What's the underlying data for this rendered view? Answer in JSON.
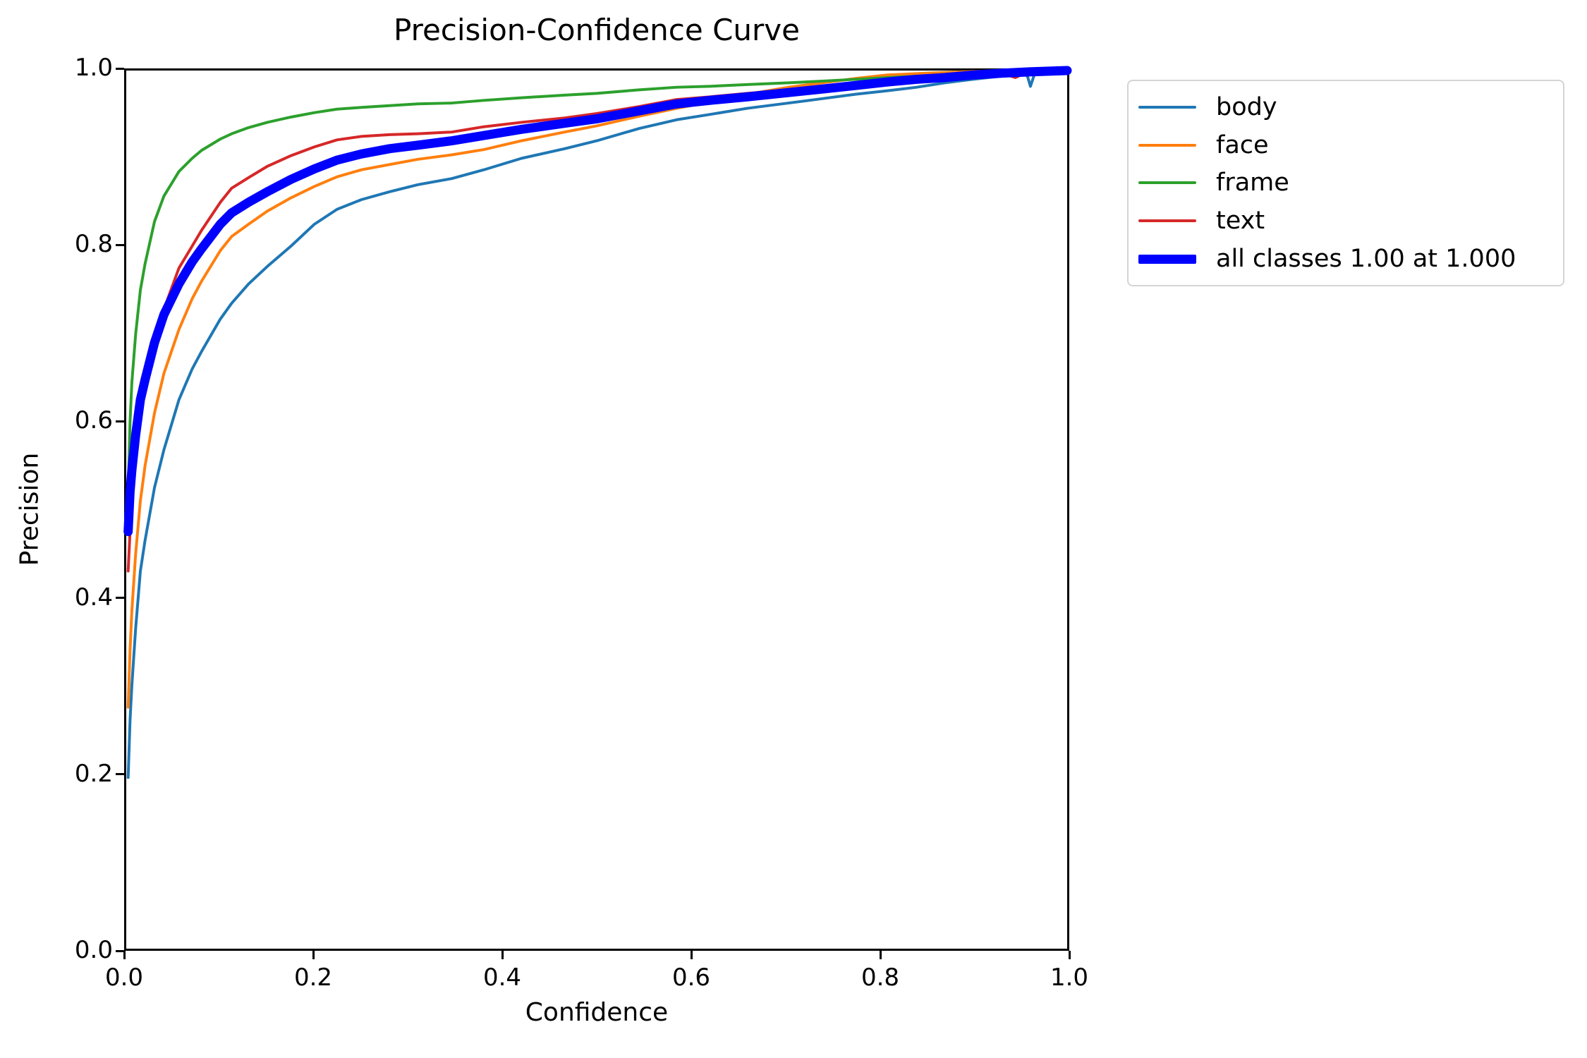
{
  "chart_data": {
    "type": "line",
    "title": "Precision-Confidence Curve",
    "xlabel": "Confidence",
    "ylabel": "Precision",
    "xlim": [
      0.0,
      1.0
    ],
    "ylim": [
      0.0,
      1.0
    ],
    "grid": false,
    "legend_position": "outside-upper-right",
    "x_ticks": [
      {
        "v": 0.0,
        "label": "0.0"
      },
      {
        "v": 0.2,
        "label": "0.2"
      },
      {
        "v": 0.4,
        "label": "0.4"
      },
      {
        "v": 0.6,
        "label": "0.6"
      },
      {
        "v": 0.8,
        "label": "0.8"
      },
      {
        "v": 1.0,
        "label": "1.0"
      }
    ],
    "y_ticks": [
      {
        "v": 0.0,
        "label": "0.0"
      },
      {
        "v": 0.2,
        "label": "0.2"
      },
      {
        "v": 0.4,
        "label": "0.4"
      },
      {
        "v": 0.6,
        "label": "0.6"
      },
      {
        "v": 0.8,
        "label": "0.8"
      },
      {
        "v": 1.0,
        "label": "1.0"
      }
    ],
    "series": [
      {
        "name": "body",
        "color": "#1f77b4",
        "line_width": 4,
        "points": [
          [
            0.002,
            0.195
          ],
          [
            0.004,
            0.26
          ],
          [
            0.006,
            0.3
          ],
          [
            0.01,
            0.365
          ],
          [
            0.015,
            0.43
          ],
          [
            0.02,
            0.465
          ],
          [
            0.03,
            0.525
          ],
          [
            0.04,
            0.568
          ],
          [
            0.056,
            0.625
          ],
          [
            0.07,
            0.66
          ],
          [
            0.08,
            0.68
          ],
          [
            0.1,
            0.717
          ],
          [
            0.112,
            0.735
          ],
          [
            0.13,
            0.757
          ],
          [
            0.15,
            0.777
          ],
          [
            0.175,
            0.8
          ],
          [
            0.2,
            0.825
          ],
          [
            0.224,
            0.842
          ],
          [
            0.25,
            0.853
          ],
          [
            0.28,
            0.862
          ],
          [
            0.31,
            0.87
          ],
          [
            0.346,
            0.877
          ],
          [
            0.38,
            0.887
          ],
          [
            0.42,
            0.9
          ],
          [
            0.466,
            0.911
          ],
          [
            0.5,
            0.92
          ],
          [
            0.545,
            0.934
          ],
          [
            0.585,
            0.944
          ],
          [
            0.62,
            0.95
          ],
          [
            0.66,
            0.957
          ],
          [
            0.704,
            0.963
          ],
          [
            0.74,
            0.968
          ],
          [
            0.775,
            0.973
          ],
          [
            0.809,
            0.977
          ],
          [
            0.84,
            0.981
          ],
          [
            0.87,
            0.986
          ],
          [
            0.9,
            0.99
          ],
          [
            0.925,
            0.993
          ],
          [
            0.945,
            0.995
          ],
          [
            0.955,
            0.996
          ],
          [
            0.958,
            0.993
          ],
          [
            0.961,
            0.982
          ],
          [
            0.965,
            0.995
          ],
          [
            0.97,
            0.998
          ],
          [
            0.98,
            0.999
          ],
          [
            1.0,
            1.0
          ]
        ]
      },
      {
        "name": "face",
        "color": "#ff7f0e",
        "line_width": 4,
        "points": [
          [
            0.002,
            0.275
          ],
          [
            0.004,
            0.34
          ],
          [
            0.006,
            0.385
          ],
          [
            0.01,
            0.45
          ],
          [
            0.015,
            0.51
          ],
          [
            0.02,
            0.55
          ],
          [
            0.03,
            0.61
          ],
          [
            0.04,
            0.655
          ],
          [
            0.056,
            0.705
          ],
          [
            0.07,
            0.74
          ],
          [
            0.08,
            0.76
          ],
          [
            0.1,
            0.795
          ],
          [
            0.112,
            0.811
          ],
          [
            0.13,
            0.825
          ],
          [
            0.15,
            0.84
          ],
          [
            0.175,
            0.855
          ],
          [
            0.2,
            0.868
          ],
          [
            0.224,
            0.879
          ],
          [
            0.25,
            0.887
          ],
          [
            0.28,
            0.893
          ],
          [
            0.31,
            0.899
          ],
          [
            0.346,
            0.904
          ],
          [
            0.38,
            0.91
          ],
          [
            0.42,
            0.92
          ],
          [
            0.466,
            0.93
          ],
          [
            0.5,
            0.937
          ],
          [
            0.545,
            0.948
          ],
          [
            0.585,
            0.957
          ],
          [
            0.62,
            0.964
          ],
          [
            0.66,
            0.973
          ],
          [
            0.704,
            0.981
          ],
          [
            0.74,
            0.986
          ],
          [
            0.775,
            0.991
          ],
          [
            0.809,
            0.995
          ],
          [
            0.85,
            0.997
          ],
          [
            0.9,
            0.999
          ],
          [
            0.95,
            0.9995
          ],
          [
            1.0,
            1.0
          ]
        ]
      },
      {
        "name": "frame",
        "color": "#2ca02c",
        "line_width": 4,
        "points": [
          [
            0.002,
            0.52
          ],
          [
            0.004,
            0.6
          ],
          [
            0.006,
            0.645
          ],
          [
            0.01,
            0.7
          ],
          [
            0.015,
            0.75
          ],
          [
            0.02,
            0.78
          ],
          [
            0.03,
            0.828
          ],
          [
            0.04,
            0.857
          ],
          [
            0.056,
            0.885
          ],
          [
            0.07,
            0.9
          ],
          [
            0.08,
            0.909
          ],
          [
            0.1,
            0.922
          ],
          [
            0.112,
            0.928
          ],
          [
            0.13,
            0.935
          ],
          [
            0.15,
            0.941
          ],
          [
            0.175,
            0.947
          ],
          [
            0.2,
            0.952
          ],
          [
            0.224,
            0.956
          ],
          [
            0.25,
            0.958
          ],
          [
            0.28,
            0.96
          ],
          [
            0.31,
            0.962
          ],
          [
            0.346,
            0.963
          ],
          [
            0.38,
            0.966
          ],
          [
            0.42,
            0.969
          ],
          [
            0.466,
            0.972
          ],
          [
            0.5,
            0.974
          ],
          [
            0.545,
            0.978
          ],
          [
            0.585,
            0.981
          ],
          [
            0.62,
            0.982
          ],
          [
            0.66,
            0.984
          ],
          [
            0.704,
            0.986
          ],
          [
            0.74,
            0.988
          ],
          [
            0.775,
            0.99
          ],
          [
            0.809,
            0.992
          ],
          [
            0.85,
            0.994
          ],
          [
            0.9,
            0.9965
          ],
          [
            0.95,
            0.9985
          ],
          [
            1.0,
            1.0
          ]
        ]
      },
      {
        "name": "text",
        "color": "#d62728",
        "line_width": 4,
        "points": [
          [
            0.002,
            0.43
          ],
          [
            0.004,
            0.475
          ],
          [
            0.006,
            0.505
          ],
          [
            0.01,
            0.555
          ],
          [
            0.015,
            0.605
          ],
          [
            0.02,
            0.638
          ],
          [
            0.03,
            0.69
          ],
          [
            0.04,
            0.728
          ],
          [
            0.056,
            0.775
          ],
          [
            0.07,
            0.8
          ],
          [
            0.08,
            0.818
          ],
          [
            0.1,
            0.85
          ],
          [
            0.112,
            0.866
          ],
          [
            0.13,
            0.878
          ],
          [
            0.15,
            0.891
          ],
          [
            0.175,
            0.903
          ],
          [
            0.2,
            0.913
          ],
          [
            0.224,
            0.921
          ],
          [
            0.25,
            0.925
          ],
          [
            0.28,
            0.927
          ],
          [
            0.31,
            0.928
          ],
          [
            0.346,
            0.93
          ],
          [
            0.38,
            0.936
          ],
          [
            0.42,
            0.941
          ],
          [
            0.466,
            0.946
          ],
          [
            0.5,
            0.951
          ],
          [
            0.545,
            0.959
          ],
          [
            0.585,
            0.967
          ],
          [
            0.62,
            0.97
          ],
          [
            0.66,
            0.974
          ],
          [
            0.704,
            0.978
          ],
          [
            0.74,
            0.98
          ],
          [
            0.775,
            0.982
          ],
          [
            0.809,
            0.985
          ],
          [
            0.84,
            0.988
          ],
          [
            0.87,
            0.991
          ],
          [
            0.9,
            0.995
          ],
          [
            0.92,
            0.996
          ],
          [
            0.935,
            0.9955
          ],
          [
            0.945,
            0.992
          ],
          [
            0.955,
            0.997
          ],
          [
            0.97,
            0.999
          ],
          [
            1.0,
            1.0
          ]
        ]
      },
      {
        "name": "all classes 1.00 at 1.000",
        "color": "#0000ff",
        "line_width": 13,
        "points": [
          [
            0.002,
            0.475
          ],
          [
            0.004,
            0.52
          ],
          [
            0.006,
            0.545
          ],
          [
            0.01,
            0.585
          ],
          [
            0.015,
            0.625
          ],
          [
            0.02,
            0.648
          ],
          [
            0.03,
            0.69
          ],
          [
            0.04,
            0.722
          ],
          [
            0.056,
            0.757
          ],
          [
            0.07,
            0.782
          ],
          [
            0.08,
            0.797
          ],
          [
            0.1,
            0.825
          ],
          [
            0.112,
            0.838
          ],
          [
            0.13,
            0.85
          ],
          [
            0.15,
            0.862
          ],
          [
            0.175,
            0.876
          ],
          [
            0.2,
            0.888
          ],
          [
            0.224,
            0.898
          ],
          [
            0.25,
            0.905
          ],
          [
            0.28,
            0.911
          ],
          [
            0.31,
            0.915
          ],
          [
            0.346,
            0.92
          ],
          [
            0.38,
            0.926
          ],
          [
            0.42,
            0.933
          ],
          [
            0.466,
            0.94
          ],
          [
            0.5,
            0.945
          ],
          [
            0.545,
            0.954
          ],
          [
            0.585,
            0.962
          ],
          [
            0.62,
            0.966
          ],
          [
            0.66,
            0.97
          ],
          [
            0.704,
            0.975
          ],
          [
            0.74,
            0.979
          ],
          [
            0.775,
            0.983
          ],
          [
            0.809,
            0.987
          ],
          [
            0.84,
            0.99
          ],
          [
            0.87,
            0.992
          ],
          [
            0.9,
            0.995
          ],
          [
            0.93,
            0.997
          ],
          [
            0.96,
            0.9985
          ],
          [
            1.0,
            1.0
          ]
        ]
      }
    ],
    "legend": {
      "items": [
        {
          "label": "body",
          "color": "#1f77b4",
          "line_width": 4
        },
        {
          "label": "face",
          "color": "#ff7f0e",
          "line_width": 4
        },
        {
          "label": "frame",
          "color": "#2ca02c",
          "line_width": 4
        },
        {
          "label": "text",
          "color": "#d62728",
          "line_width": 4
        },
        {
          "label": "all classes 1.00 at 1.000",
          "color": "#0000ff",
          "line_width": 13
        }
      ]
    }
  }
}
